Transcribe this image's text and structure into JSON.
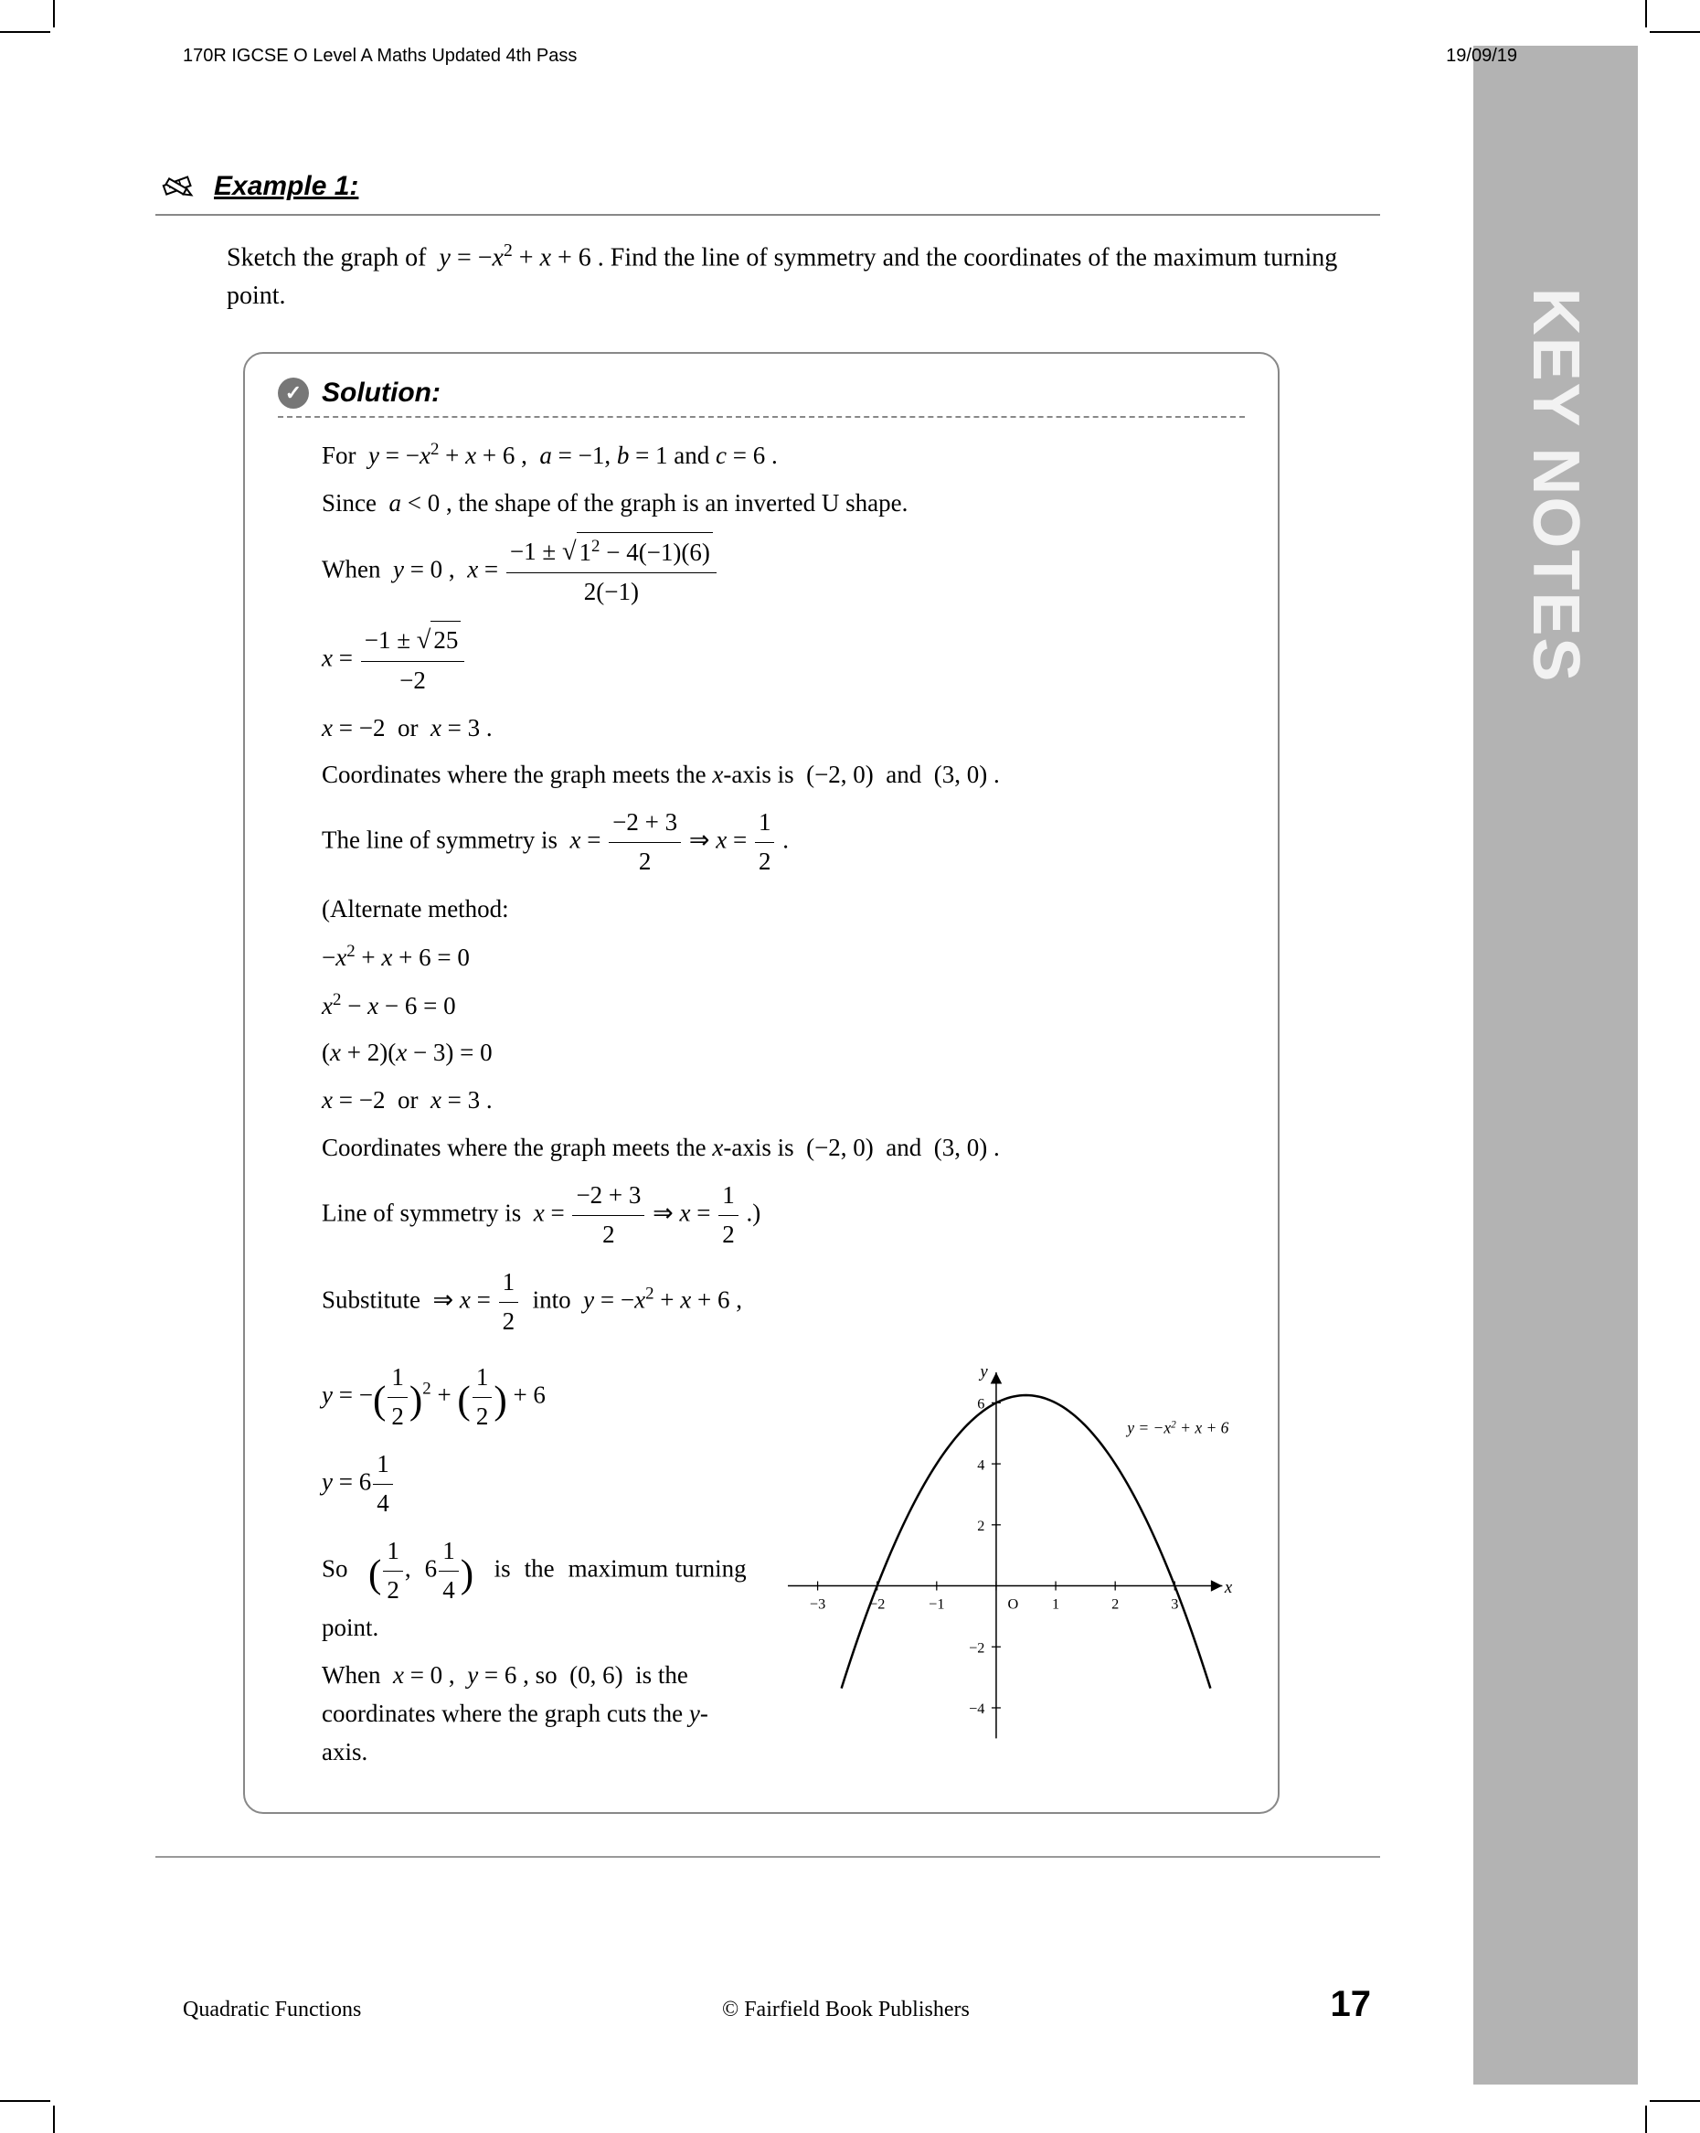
{
  "header": {
    "left": "170R IGCSE O Level A Maths Updated 4th Pass",
    "right": "19/09/19"
  },
  "example": {
    "label": "Example 1:",
    "prompt": "Sketch the graph of  y = −x² + x + 6 . Find the line of symmetry and the coordinates of the maximum turning point."
  },
  "solution": {
    "title": "Solution:",
    "lines": {
      "l1_a": "For  ",
      "l1_b": "y = −x² + x + 6 ,  a = −1, b = 1 and c = 6 .",
      "l2_a": "Since  ",
      "l2_b": "a < 0",
      "l2_c": " , the shape of the graph is an inverted U shape.",
      "l3_a": "When  ",
      "l3_b": "y = 0 ,  x =",
      "frac1_num": "−1 ± √(1² − 4(−1)(6))",
      "frac1_den": "2(−1)",
      "frac2_lead": "x =",
      "frac2_num": "−1 ± √25",
      "frac2_den": "−2",
      "l4": "x = −2  or  x = 3 .",
      "l5": "Coordinates where the graph meets the x-axis is  (−2, 0)  and  (3, 0) .",
      "l6_a": "The line of symmetry is  x =",
      "l6_num": "−2 + 3",
      "l6_den": "2",
      "l6_b": "⇒ x =",
      "l6_num2": "1",
      "l6_den2": "2",
      "l7": "(Alternate method:",
      "l8": "−x² + x + 6 = 0",
      "l9": "x² − x − 6 = 0",
      "l10": "(x + 2)(x − 3) = 0",
      "l11": "x = −2  or  x = 3 .",
      "l12": "Coordinates where the graph meets the x-axis is  (−2, 0)  and  (3, 0) .",
      "l13_a": "Line of symmetry is  x =",
      "l13_close": ".)",
      "l14_a": "Substitute  ⇒ x =",
      "l14_b": "  into  y = −x² + x + 6 ,",
      "l15_a": "y = −",
      "l15_sq": "²",
      "l15_b": " + ",
      "l15_c": " + 6",
      "l16_a": "y = 6",
      "l16_num": "1",
      "l16_den": "4",
      "l17_a": "So   ",
      "l17_b": "   is  the  maximum  turning point.",
      "l18": "When  x = 0 ,  y = 6 , so  (0, 6)  is the coordinates where the graph cuts the y-axis."
    }
  },
  "graph": {
    "type": "parabola",
    "equation_label": "y = −x² + x + 6",
    "xlim": [
      -3.5,
      3.8
    ],
    "ylim": [
      -5,
      7
    ],
    "xticks": [
      -3,
      -2,
      -1,
      0,
      1,
      2,
      3
    ],
    "yticks": [
      -4,
      -2,
      2,
      4,
      6
    ],
    "origin_label": "O",
    "x_axis_label": "x",
    "y_axis_label": "y",
    "curve_color": "#000000",
    "axis_color": "#000000",
    "background_color": "#ffffff",
    "curve_stroke_width": 2,
    "axis_stroke_width": 1.2,
    "tick_fontsize": 13,
    "label_fontsize": 15,
    "a": -1,
    "b": 1,
    "c": 6,
    "x_intercepts": [
      -2,
      3
    ],
    "vertex": [
      0.5,
      6.25
    ]
  },
  "side_tab": "KEY NOTES",
  "footer": {
    "left": "Quadratic Functions",
    "center": "© Fairfield Book Publishers",
    "page": "17"
  },
  "crop_marks_color": "#000000"
}
